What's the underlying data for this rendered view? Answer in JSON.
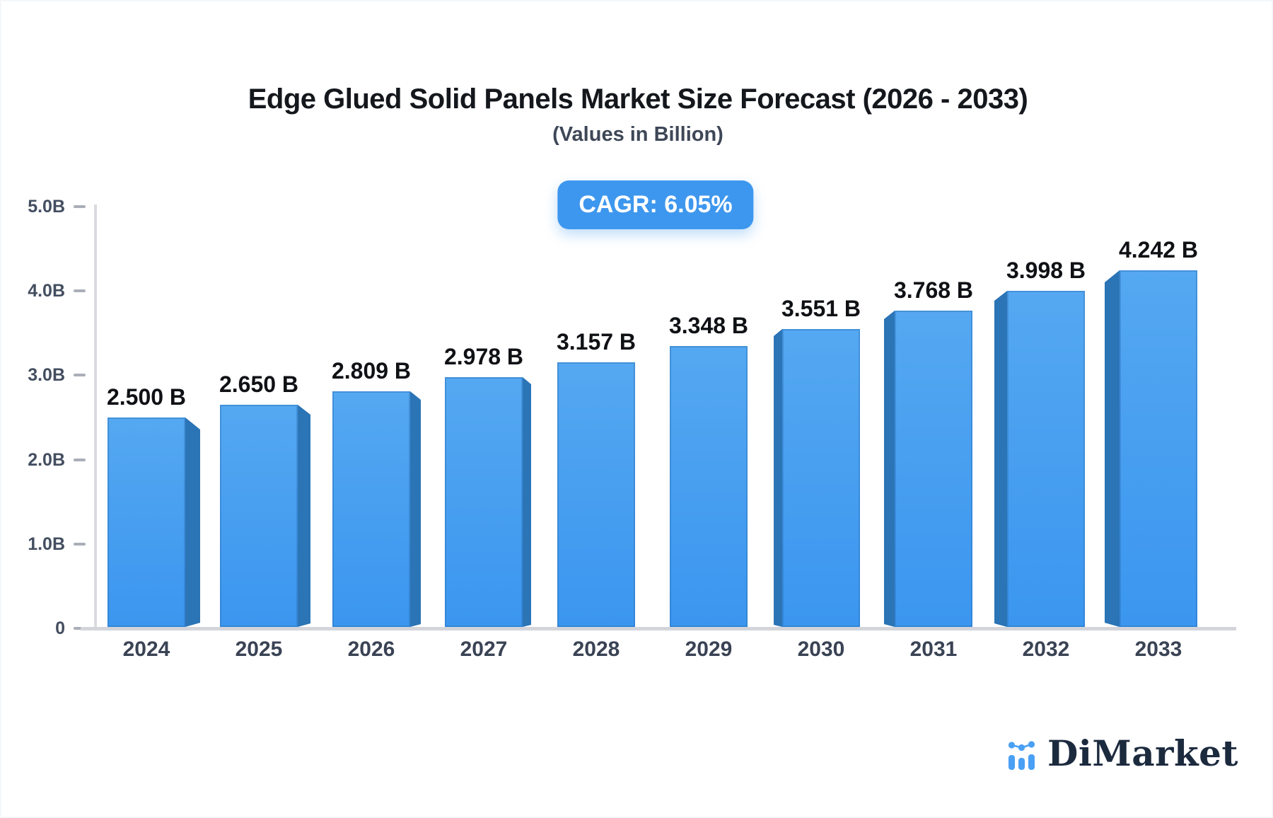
{
  "chart_data": {
    "type": "bar",
    "title": "Edge Glued Solid Panels Market Size Forecast (2026 - 2033)",
    "subtitle": "(Values in Billion)",
    "annotation_badge": "CAGR: 6.05%",
    "categories": [
      "2024",
      "2025",
      "2026",
      "2027",
      "2028",
      "2029",
      "2030",
      "2031",
      "2032",
      "2033"
    ],
    "values": [
      2.5,
      2.65,
      2.809,
      2.978,
      3.157,
      3.348,
      3.551,
      3.768,
      3.998,
      4.242
    ],
    "value_labels": [
      "2.500 B",
      "2.650 B",
      "2.809 B",
      "2.978 B",
      "3.157 B",
      "3.348 B",
      "3.551 B",
      "3.768 B",
      "3.998 B",
      "4.242 B"
    ],
    "xlabel": "",
    "ylabel": "",
    "ylim": [
      0,
      5
    ],
    "y_ticks": [
      {
        "value": 0,
        "label": "0"
      },
      {
        "value": 1,
        "label": "1.0B"
      },
      {
        "value": 2,
        "label": "2.0B"
      },
      {
        "value": 3,
        "label": "3.0B"
      },
      {
        "value": 4,
        "label": "4.0B"
      },
      {
        "value": 5,
        "label": "5.0B"
      }
    ],
    "grid": false,
    "legend": "none",
    "bar_style": "3d-perspective"
  },
  "colors": {
    "accent_blue": "#3e97ee",
    "bar_face_top": "#55a8f1",
    "bar_face_bottom": "#3b96ef",
    "bar_side_shadow": "#2b74b6",
    "axis_line": "#d6d8de",
    "tick_text": "#434e60",
    "year_text": "#3a4354",
    "value_text": "#0f1115",
    "title_text": "#14171c",
    "subtitle_text": "#3e4757",
    "badge_text": "#ffffff",
    "logo_blue": "#4aa0f4",
    "logo_navy": "#1c2a3e"
  },
  "footer": {
    "brand": "DiMarket"
  }
}
